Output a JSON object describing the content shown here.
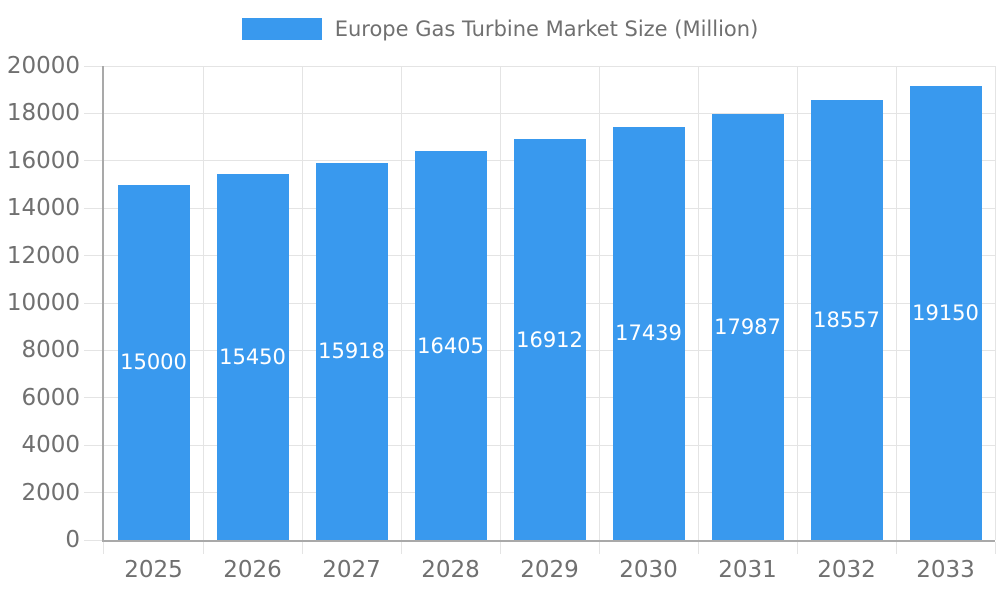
{
  "chart_data": {
    "type": "bar",
    "title": "Europe Gas Turbine Market Size (Million)",
    "categories": [
      "2025",
      "2026",
      "2027",
      "2028",
      "2029",
      "2030",
      "2031",
      "2032",
      "2033"
    ],
    "values": [
      15000,
      15450,
      15918,
      16405,
      16912,
      17439,
      17987,
      18557,
      19150
    ],
    "xlabel": "",
    "ylabel": "",
    "ylim": [
      0,
      20000
    ],
    "ytick_step": 2000,
    "grid": "horizontal and vertical",
    "legend_position": "top-center",
    "bar_label_position": "inside-middle",
    "colors": {
      "bar": "#3999ee",
      "grid": "#e4e4e4",
      "axis": "#a9a9a9",
      "axis_text": "#707070",
      "bar_label_text": "#ffffff"
    }
  }
}
